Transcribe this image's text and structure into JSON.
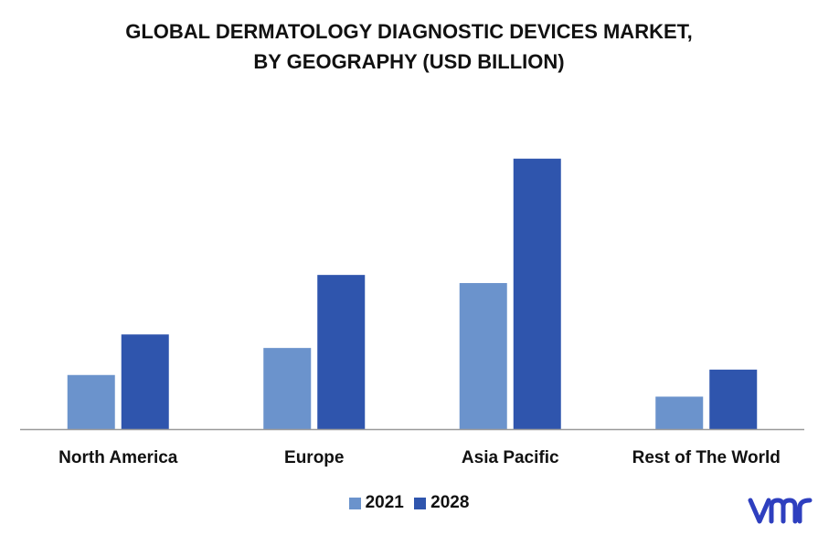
{
  "title_line1": "GLOBAL DERMATOLOGY DIAGNOSTIC DEVICES MARKET,",
  "title_line2": "BY GEOGRAPHY (USD BILLION)",
  "colors": {
    "series_2021": "#6b93cc",
    "series_2028": "#2f55ad",
    "axis": "#9a9a9a",
    "logo": "#2e3fbf"
  },
  "logo_icon": "vmr-logo-icon",
  "chart_data": {
    "type": "bar",
    "categories": [
      "North America",
      "Europe",
      "Asia Pacific",
      "Rest of The World"
    ],
    "series": [
      {
        "name": "2021",
        "values": [
          0.2,
          0.3,
          0.54,
          0.12
        ]
      },
      {
        "name": "2028",
        "values": [
          0.35,
          0.57,
          1.0,
          0.22
        ]
      }
    ],
    "title": "GLOBAL DERMATOLOGY DIAGNOSTIC DEVICES MARKET, BY GEOGRAPHY (USD BILLION)",
    "xlabel": "",
    "ylabel": "",
    "ylim": [
      0,
      1.06
    ],
    "grid": false,
    "legend_position": "bottom"
  }
}
